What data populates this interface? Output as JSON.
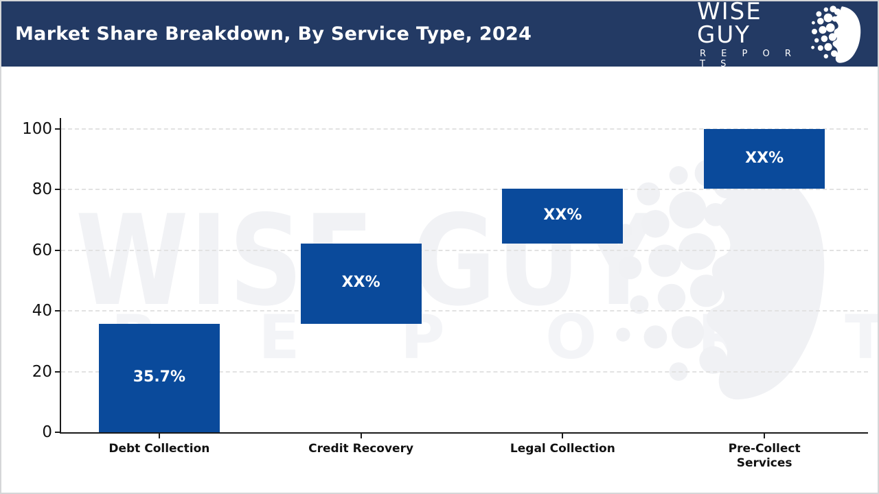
{
  "header": {
    "title": "Market Share Breakdown, By Service Type, 2024",
    "bg_color": "#233a64",
    "logo": {
      "line1": "WISE GUY",
      "line2": "R E P O R T S"
    }
  },
  "watermark": {
    "line1": "WISE GUY",
    "line2": "R E P O R T S"
  },
  "chart_data": {
    "type": "bar",
    "subtype": "waterfall-style floating bars",
    "title": "Market Share Breakdown, By Service Type, 2024",
    "categories": [
      "Debt Collection",
      "Credit Recovery",
      "Legal Collection",
      "Pre-Collect Services"
    ],
    "segments": [
      {
        "category": "Debt Collection",
        "start": 0,
        "end": 35.7,
        "label": "35.7%"
      },
      {
        "category": "Credit Recovery",
        "start": 35.7,
        "end": 62.3,
        "label": "XX%"
      },
      {
        "category": "Legal Collection",
        "start": 62.3,
        "end": 80.3,
        "label": "XX%"
      },
      {
        "category": "Pre-Collect Services",
        "start": 80.3,
        "end": 100,
        "label": "XX%"
      }
    ],
    "y_ticks": [
      0,
      20,
      40,
      60,
      80,
      100
    ],
    "ylim": [
      0,
      103.7
    ],
    "xlabel": "",
    "ylabel": "",
    "grid": "horizontal dashed, on",
    "legend": "none",
    "bar_color": "#0a4a9b",
    "bar_label_color": "#ffffff",
    "axis_color": "#1a1a1a"
  }
}
